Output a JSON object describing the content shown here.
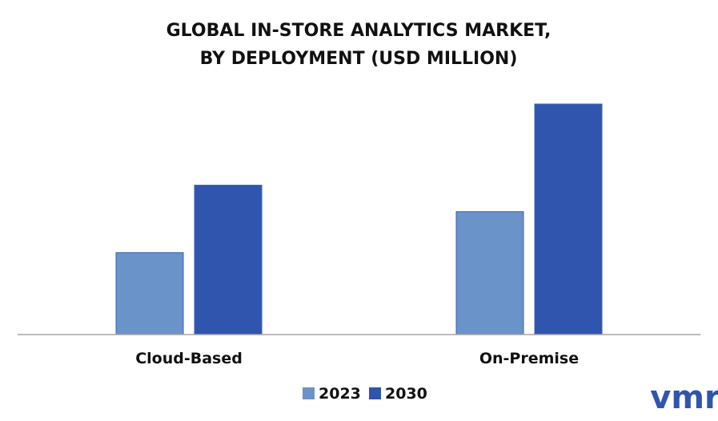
{
  "chart_data": {
    "type": "bar",
    "title": "GLOBAL IN-STORE ANALYTICS MARKET,",
    "subtitle": "BY DEPLOYMENT (USD MILLION)",
    "categories": [
      "Cloud-Based",
      "On-Premise"
    ],
    "series": [
      {
        "name": "2023",
        "values": [
          102,
          153
        ],
        "color": "#6a93c9"
      },
      {
        "name": "2030",
        "values": [
          186,
          287
        ],
        "color": "#2f55ae"
      }
    ],
    "xlabel": "",
    "ylabel": "",
    "ylim": [
      0,
      300
    ],
    "grid": false,
    "legend_position": "bottom-center"
  },
  "logo": {
    "text": "vmr",
    "color": "#2f55ae"
  }
}
